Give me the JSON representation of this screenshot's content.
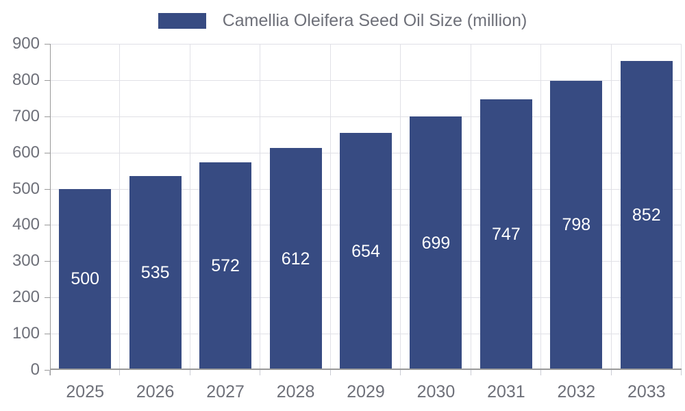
{
  "chart_data": {
    "type": "bar",
    "title": "Camellia Oleifera Seed Oil Size (million)",
    "categories": [
      "2025",
      "2026",
      "2027",
      "2028",
      "2029",
      "2030",
      "2031",
      "2032",
      "2033"
    ],
    "values": [
      500,
      535,
      572,
      612,
      654,
      699,
      747,
      798,
      852
    ],
    "xlabel": "",
    "ylabel": "",
    "ylim": [
      0,
      900
    ],
    "yticks": [
      0,
      100,
      200,
      300,
      400,
      500,
      600,
      700,
      800,
      900
    ],
    "grid": "on",
    "legend_position": "top-center",
    "value_labels": "inside-center",
    "colors": {
      "bar": "#374B82",
      "value_label": "#FFFFFF",
      "axis_text": "#6E7079",
      "gridline": "#E0E0E6",
      "axis_line": "#999999",
      "background": "#FFFFFF"
    }
  }
}
